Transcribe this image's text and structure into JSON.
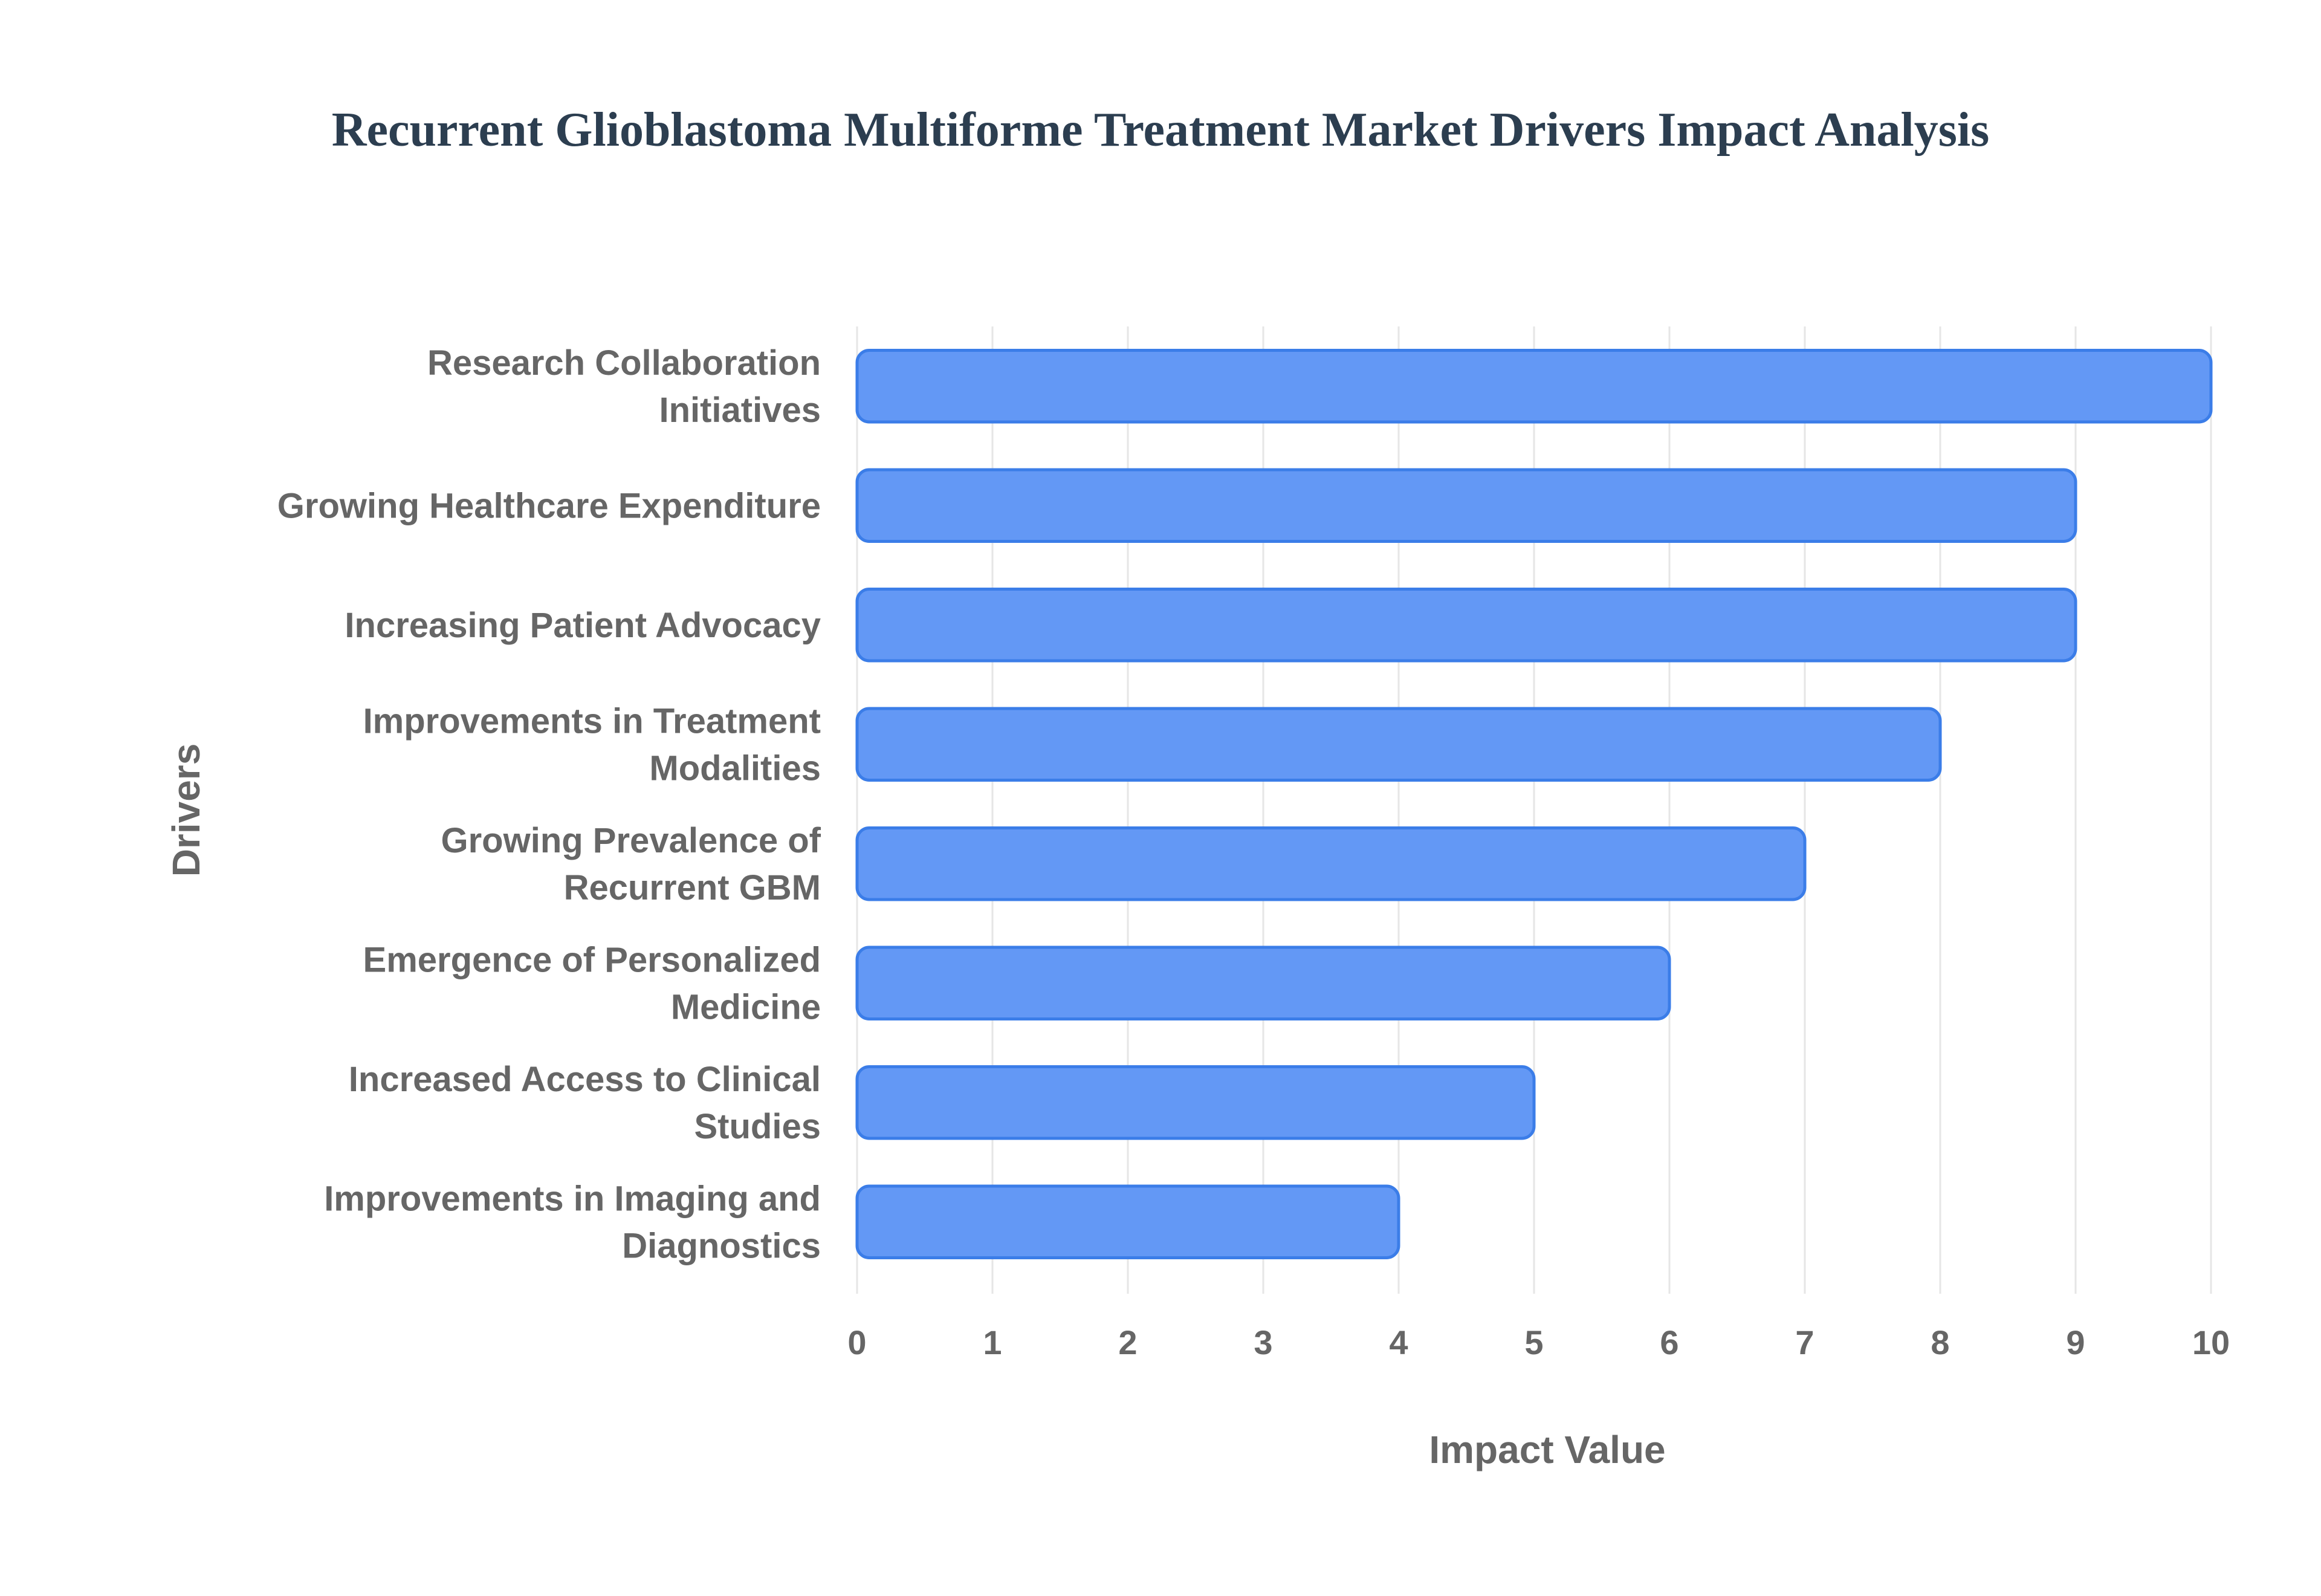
{
  "chart_data": {
    "type": "bar",
    "orientation": "horizontal",
    "title": "Recurrent Glioblastoma Multiforme Treatment Market Drivers Impact Analysis",
    "xlabel": "Impact Value",
    "ylabel": "Drivers",
    "xlim": [
      0,
      10
    ],
    "x_ticks": [
      "0",
      "1",
      "2",
      "3",
      "4",
      "5",
      "6",
      "7",
      "8",
      "9",
      "10"
    ],
    "grid": true,
    "legend": "none",
    "categories": [
      [
        "Research Collaboration",
        "Initiatives"
      ],
      [
        "Growing Healthcare Expenditure"
      ],
      [
        "Increasing Patient Advocacy"
      ],
      [
        "Improvements in Treatment",
        "Modalities"
      ],
      [
        "Growing Prevalence of",
        "Recurrent GBM"
      ],
      [
        "Emergence of Personalized",
        "Medicine"
      ],
      [
        "Increased Access to Clinical",
        "Studies"
      ],
      [
        "Improvements in Imaging and",
        "Diagnostics"
      ]
    ],
    "values": [
      10,
      9,
      9,
      8,
      7,
      6,
      5,
      4
    ],
    "bar_color": "#6398f5",
    "bar_border_color": "#3b7de8",
    "grid_color": "#e6e6e6"
  }
}
